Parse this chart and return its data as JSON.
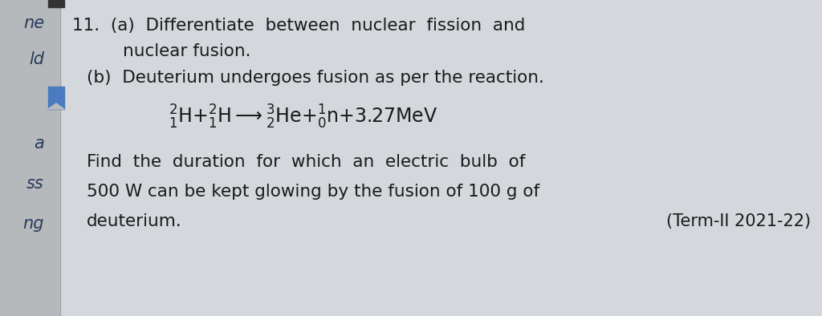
{
  "bg_color": "#c8ccd0",
  "paper_color": "#d8dce0",
  "left_strip_color": "#b0b4b8",
  "text_color": "#1a1a1a",
  "dark_text_color": "#111111",
  "line1": "11.  (a)  Differentiate  between  nuclear  fission  and",
  "line2": "nuclear fusion.",
  "line3": "(b)  Deuterium undergoes fusion as per the reaction.",
  "line5": "Find  the  duration  for  which  an  electric  bulb  of",
  "line6": "500 W can be kept glowing by the fusion of 100 g of",
  "line7_left": "deuterium.",
  "line7_right": "(Term-II 2021-22)",
  "font_size_main": 15.5,
  "font_size_equation": 17,
  "font_size_term": 15
}
